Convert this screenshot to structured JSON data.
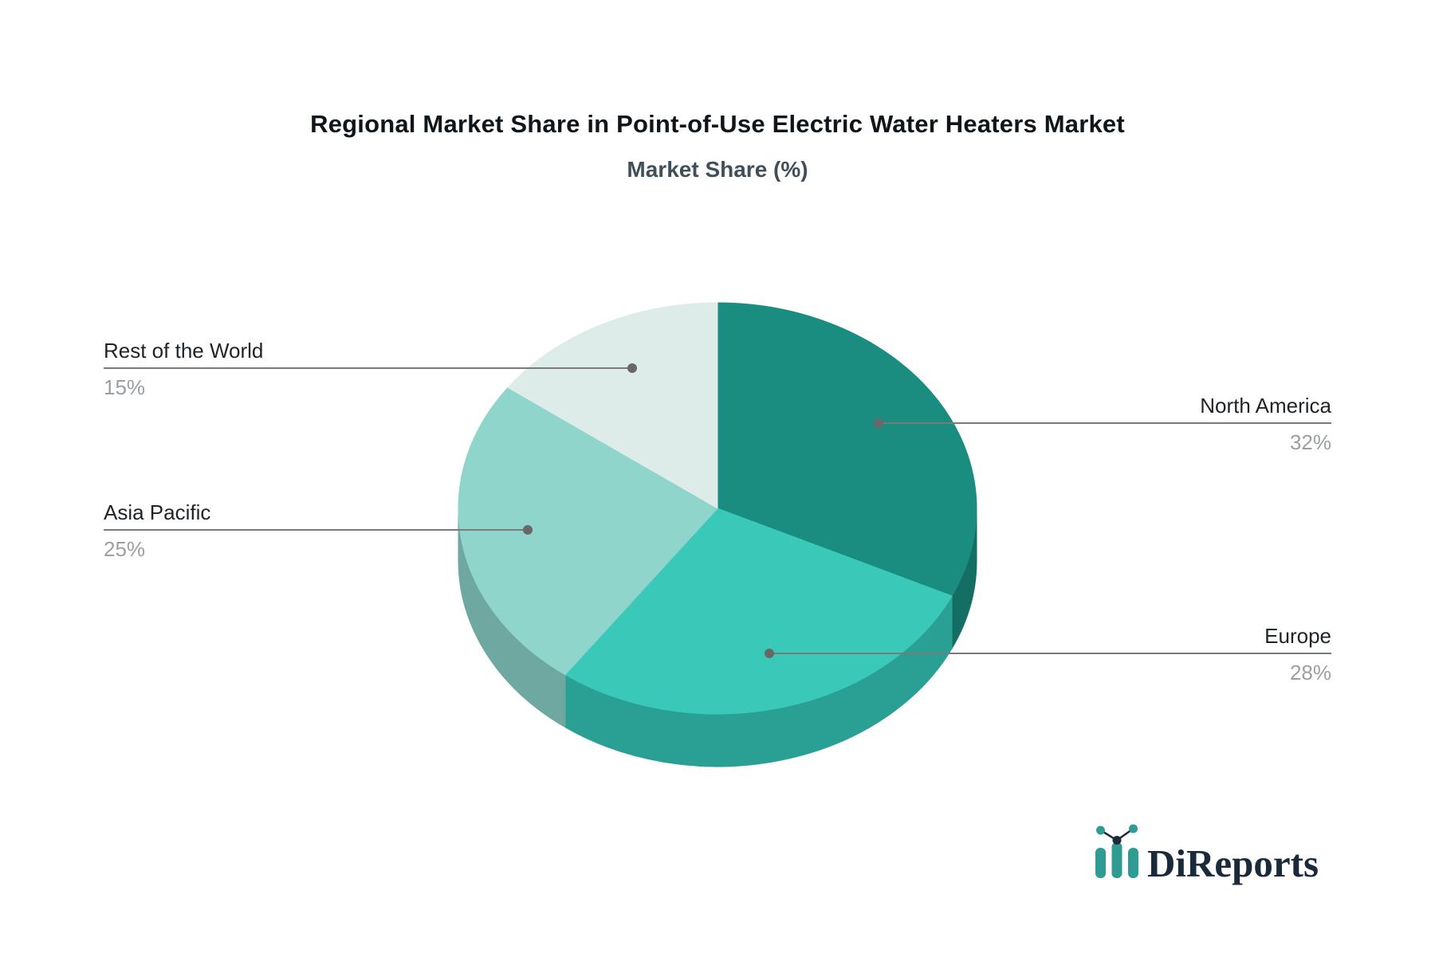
{
  "chart_data": {
    "type": "pie",
    "projection": "3d",
    "title": "Regional Market Share in Point-of-Use Electric Water Heaters Market",
    "subtitle": "Market Share (%)",
    "legend": "none",
    "slices": [
      {
        "label": "North America",
        "value": 32,
        "pct_text": "32%",
        "color": "#1A8D80",
        "side_color": "#146E64"
      },
      {
        "label": "Europe",
        "value": 28,
        "pct_text": "28%",
        "color": "#3AC9B9",
        "side_color": "#2AA094"
      },
      {
        "label": "Asia Pacific",
        "value": 25,
        "pct_text": "25%",
        "color": "#8FD5CC",
        "side_color": "#6FA7A1"
      },
      {
        "label": "Rest of the World",
        "value": 15,
        "pct_text": "15%",
        "color": "#DDECE9",
        "side_color": "#B2CCC7"
      }
    ],
    "start_angle_deg": 0,
    "clockwise": true
  },
  "colors": {
    "background": "#FFFFFF",
    "title": "#10151A",
    "subtitle": "#40505B",
    "label": "#1F2429",
    "pct": "#9B9FA3",
    "callout_line": "#7A7A7A",
    "callout_dot": "#686868"
  },
  "logo": {
    "text": "DiReports",
    "color": "#1B2A3A",
    "accent": "#2E9C92",
    "icon": "bar-line-chart-icon"
  }
}
